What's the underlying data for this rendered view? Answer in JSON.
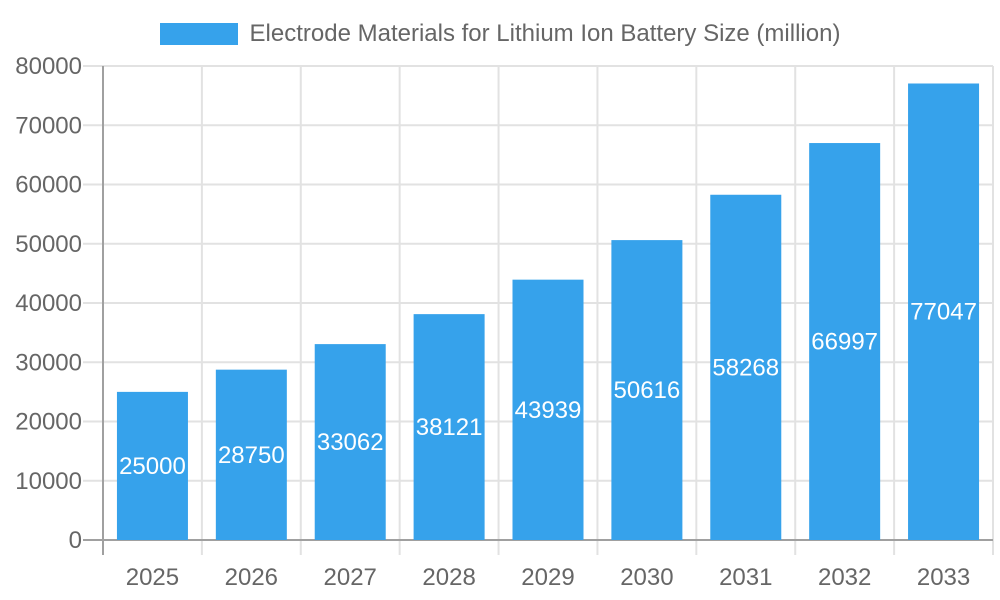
{
  "legend": {
    "label": "Electrode Materials for Lithium Ion Battery Size (million)"
  },
  "chart_data": {
    "type": "bar",
    "title": "Electrode Materials for Lithium Ion Battery Size (million)",
    "categories": [
      "2025",
      "2026",
      "2027",
      "2028",
      "2029",
      "2030",
      "2031",
      "2032",
      "2033"
    ],
    "values": [
      25000,
      28750,
      33062,
      38121,
      43939,
      50616,
      58268,
      66997,
      77047
    ],
    "series": [
      {
        "name": "Electrode Materials for Lithium Ion Battery Size (million)",
        "values": [
          25000,
          28750,
          33062,
          38121,
          43939,
          50616,
          58268,
          66997,
          77047
        ]
      }
    ],
    "xlabel": "",
    "ylabel": "",
    "ylim": [
      0,
      80000
    ],
    "yticks": [
      0,
      10000,
      20000,
      30000,
      40000,
      50000,
      60000,
      70000,
      80000
    ],
    "grid": true,
    "legend_position": "top",
    "value_label_style": "white-centered-inside-bar",
    "colors": {
      "bar": "#36A2EB",
      "grid": "#E2E2E2",
      "axis": "#A0A0A0",
      "tick_label": "#666666",
      "legend_text": "#666666",
      "value_label": "#FFFFFF"
    }
  }
}
